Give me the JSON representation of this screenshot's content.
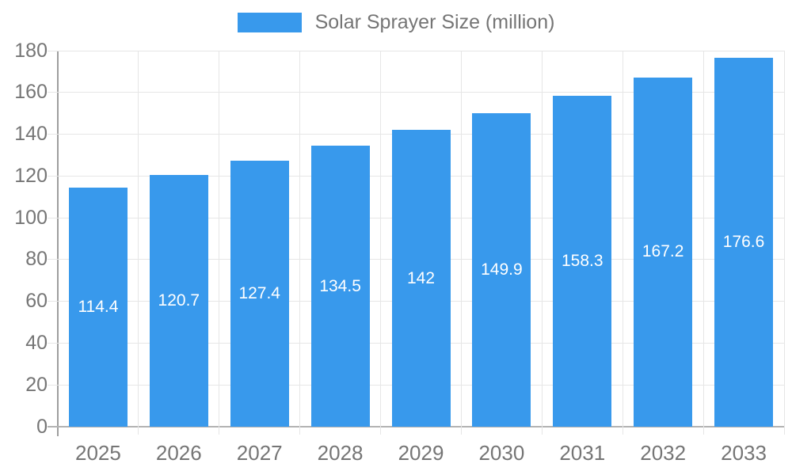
{
  "chart_data": {
    "type": "bar",
    "title": "",
    "legend": {
      "label": "Solar Sprayer Size (million)",
      "position": "top"
    },
    "categories": [
      "2025",
      "2026",
      "2027",
      "2028",
      "2029",
      "2030",
      "2031",
      "2032",
      "2033"
    ],
    "series": [
      {
        "name": "Solar Sprayer Size (million)",
        "values": [
          114.4,
          120.7,
          127.4,
          134.5,
          142,
          149.9,
          158.3,
          167.2,
          176.6
        ]
      }
    ],
    "xlabel": "",
    "ylabel": "",
    "ylim": [
      0,
      180
    ],
    "yticks": [
      0,
      20,
      40,
      60,
      80,
      100,
      120,
      140,
      160,
      180
    ],
    "grid": true,
    "value_labels_visible": true,
    "colors": {
      "bar": "#3899ec",
      "grid": "#e6e6e6",
      "axis_y": "#9e9e9e",
      "axis_x": "#b3b3b3",
      "tick_text": "#757575",
      "value_label_text": "#ffffff",
      "background": "#ffffff"
    }
  }
}
